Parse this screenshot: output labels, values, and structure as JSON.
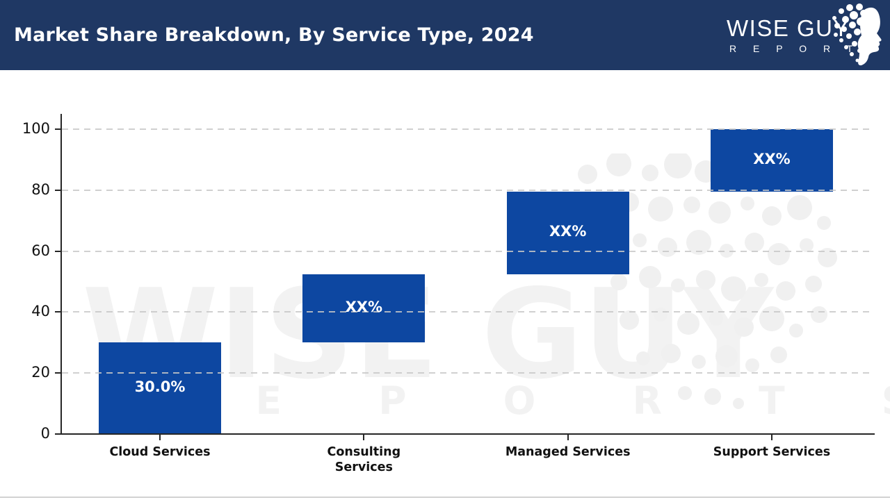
{
  "header": {
    "title": "Market Share Breakdown, By Service Type, 2024",
    "logo": {
      "line1": "WISE GUY",
      "line2": "R E P O R T S"
    }
  },
  "watermark": {
    "line1": "WISE GUY",
    "line2": "REPORTS"
  },
  "colors": {
    "header_bg": "#1f3864",
    "bar_blue": "#0d47a1",
    "axis": "#262626",
    "gridline": "#c8c8c8",
    "watermark_gray": "#f2f2f2",
    "value_label": "#ffffff",
    "tick_label": "#111111"
  },
  "chart_data": {
    "type": "bar",
    "subtype": "waterfall",
    "title": "Market Share Breakdown, By Service Type, 2024",
    "categories": [
      "Cloud Services",
      "Consulting\nServices",
      "Managed Services",
      "Support Services"
    ],
    "bars": [
      {
        "category": "Cloud Services",
        "start": 0,
        "end": 30,
        "value_label": "30.0%"
      },
      {
        "category": "Consulting Services",
        "start": 30,
        "end": 52.5,
        "value_label": "XX%"
      },
      {
        "category": "Managed Services",
        "start": 52.5,
        "end": 79.5,
        "value_label": "XX%"
      },
      {
        "category": "Support Services",
        "start": 79.5,
        "end": 100,
        "value_label": "XX%"
      }
    ],
    "yticks": [
      0,
      20,
      40,
      60,
      80,
      100
    ],
    "ylim": [
      0,
      105
    ],
    "xlabel": "",
    "ylabel": "",
    "grid": {
      "axis": "y",
      "style": "dashed"
    },
    "legend": null
  }
}
